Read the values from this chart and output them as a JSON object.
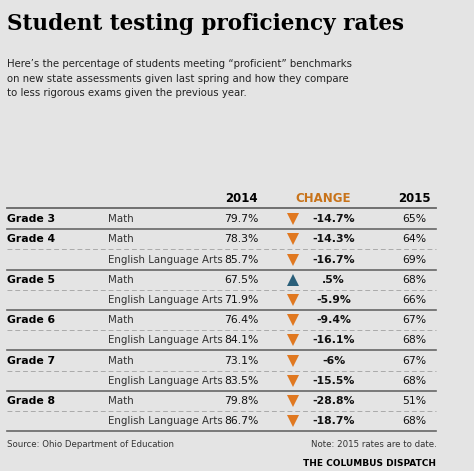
{
  "title": "Student testing proficiency rates",
  "subtitle": "Here’s the percentage of students meeting “proficient” benchmarks\non new state assessments given last spring and how they compare\nto less rigorous exams given the previous year.",
  "col_headers": [
    "2014",
    "CHANGE",
    "2015"
  ],
  "rows": [
    {
      "grade": "Grade 3",
      "subject": "Math",
      "val2014": "79.7%",
      "change": "-14.7%",
      "val2015": "65%",
      "direction": "down",
      "grade_start": true
    },
    {
      "grade": "Grade 4",
      "subject": "Math",
      "val2014": "78.3%",
      "change": "-14.3%",
      "val2015": "64%",
      "direction": "down",
      "grade_start": true
    },
    {
      "grade": "",
      "subject": "English Language Arts",
      "val2014": "85.7%",
      "change": "-16.7%",
      "val2015": "69%",
      "direction": "down",
      "grade_start": false
    },
    {
      "grade": "Grade 5",
      "subject": "Math",
      "val2014": "67.5%",
      "change": ".5%",
      "val2015": "68%",
      "direction": "up",
      "grade_start": true
    },
    {
      "grade": "",
      "subject": "English Language Arts",
      "val2014": "71.9%",
      "change": "-5.9%",
      "val2015": "66%",
      "direction": "down",
      "grade_start": false
    },
    {
      "grade": "Grade 6",
      "subject": "Math",
      "val2014": "76.4%",
      "change": "-9.4%",
      "val2015": "67%",
      "direction": "down",
      "grade_start": true
    },
    {
      "grade": "",
      "subject": "English Language Arts",
      "val2014": "84.1%",
      "change": "-16.1%",
      "val2015": "68%",
      "direction": "down",
      "grade_start": false
    },
    {
      "grade": "Grade 7",
      "subject": "Math",
      "val2014": "73.1%",
      "change": "-6%",
      "val2015": "67%",
      "direction": "down",
      "grade_start": true
    },
    {
      "grade": "",
      "subject": "English Language Arts",
      "val2014": "83.5%",
      "change": "-15.5%",
      "val2015": "68%",
      "direction": "down",
      "grade_start": false
    },
    {
      "grade": "Grade 8",
      "subject": "Math",
      "val2014": "79.8%",
      "change": "-28.8%",
      "val2015": "51%",
      "direction": "down",
      "grade_start": true
    },
    {
      "grade": "",
      "subject": "English Language Arts",
      "val2014": "86.7%",
      "change": "-18.7%",
      "val2015": "68%",
      "direction": "down",
      "grade_start": false
    }
  ],
  "footer_left": "Source: Ohio Department of Education",
  "footer_right": "Note: 2015 rates are to date.",
  "footer_brand": "THE COLUMBUS DISPATCH",
  "bg_color": "#e4e4e4",
  "down_arrow_color": "#e07820",
  "up_arrow_color": "#2a5f7a",
  "grade_bold_color": "#000000",
  "subject_color": "#333333",
  "thick_line_color": "#666666",
  "dashed_line_color": "#aaaaaa",
  "change_color": "#c8731a",
  "header_change_color": "#c8731a"
}
